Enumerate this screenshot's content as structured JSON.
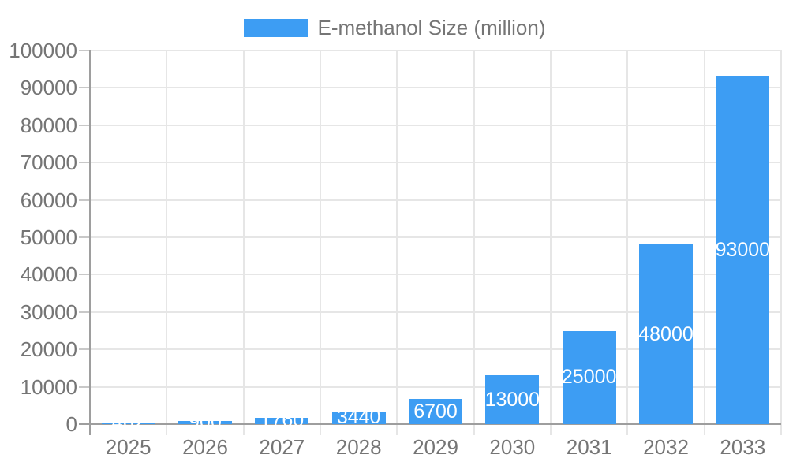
{
  "legend": {
    "label": "E-methanol Size (million)"
  },
  "chart_data": {
    "type": "bar",
    "title": "",
    "legend_label": "E-methanol Size (million)",
    "legend_position": "top-center",
    "categories": [
      "2025",
      "2026",
      "2027",
      "2028",
      "2029",
      "2030",
      "2031",
      "2032",
      "2033"
    ],
    "values": [
      462,
      900,
      1760,
      3440,
      6700,
      13000,
      25000,
      48000,
      93000
    ],
    "bar_labels": [
      "462",
      "900",
      "1760",
      "3440",
      "6700",
      "13000",
      "25000",
      "48000",
      "93000"
    ],
    "xlabel": "",
    "ylabel": "",
    "ylim": [
      0,
      100000
    ],
    "yticks": [
      0,
      10000,
      20000,
      30000,
      40000,
      50000,
      60000,
      70000,
      80000,
      90000,
      100000
    ],
    "grid": true,
    "colors": {
      "bar": "#3d9df3",
      "axis_text": "#757575",
      "grid_line": "#e6e6e6",
      "axis_line": "#9e9e9e",
      "tick": "#c8c8c8",
      "bar_label": "#ffffff",
      "background": "#ffffff"
    }
  }
}
